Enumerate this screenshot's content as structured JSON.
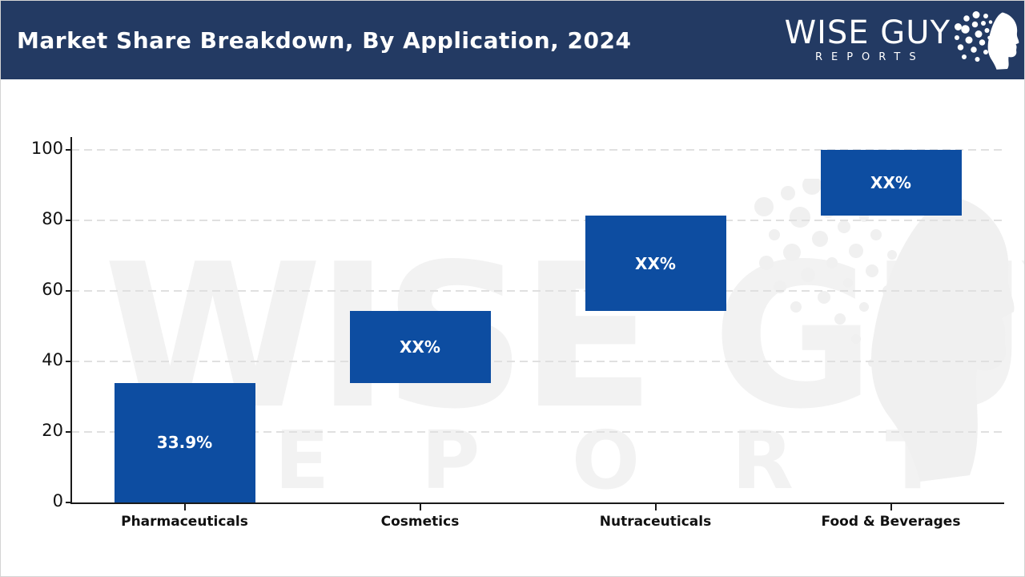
{
  "header": {
    "title": "Market Share Breakdown, By Application, 2024",
    "logo_line1": "WISE GUY",
    "logo_line2": "REPORTS"
  },
  "watermark": {
    "line1": "WISE GUY",
    "line2": "R E P O R T S"
  },
  "chart_data": {
    "type": "bar",
    "subtype": "waterfall",
    "title": "Market Share Breakdown, By Application, 2024",
    "categories": [
      "Pharmaceuticals",
      "Cosmetics",
      "Nutraceuticals",
      "Food & Beverages"
    ],
    "segments": [
      {
        "category": "Pharmaceuticals",
        "start": 0,
        "end": 33.9,
        "label": "33.9%"
      },
      {
        "category": "Cosmetics",
        "start": 33.9,
        "end": 54.3,
        "label": "XX%"
      },
      {
        "category": "Nutraceuticals",
        "start": 54.3,
        "end": 81.3,
        "label": "XX%"
      },
      {
        "category": "Food & Beverages",
        "start": 81.3,
        "end": 100,
        "label": "XX%"
      }
    ],
    "xlabel": "",
    "ylabel": "",
    "ylim": [
      0,
      103.5
    ],
    "yticks": [
      0,
      20,
      40,
      60,
      80,
      100
    ],
    "grid": "horizontal-dashed",
    "legend": "none",
    "bar_color": "#0d4da1",
    "bar_label_color": "#ffffff",
    "axis_color": "#1a1a1a",
    "gridline_color": "#e0e0e0"
  },
  "colors": {
    "header_bg": "#233a63",
    "page_bg": "#ffffff",
    "watermark": "#f2f2f2"
  }
}
